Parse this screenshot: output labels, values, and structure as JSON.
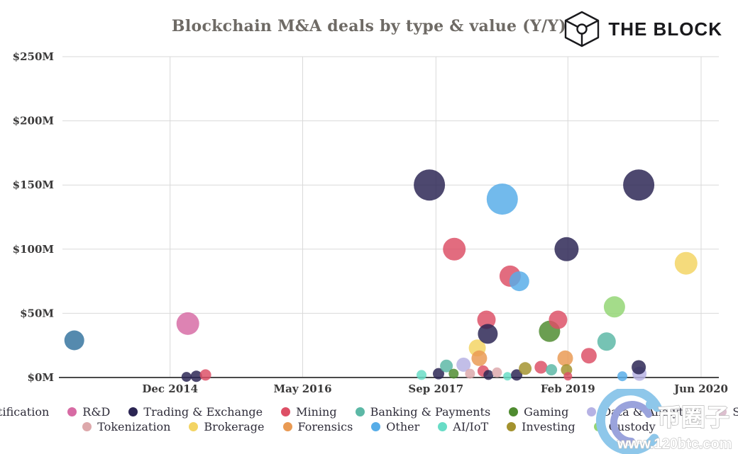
{
  "title": "Blockchain M&A deals by type & value (Y/Y)",
  "logo": {
    "text": "THE BLOCK"
  },
  "watermark": {
    "cjk": "币圈子",
    "url": "www.120btc.com"
  },
  "categories": [
    {
      "id": "identification",
      "label": "Identification",
      "color": "#35749f"
    },
    {
      "id": "rd",
      "label": "R&D",
      "color": "#d76ba4"
    },
    {
      "id": "trading",
      "label": "Trading & Exchange",
      "color": "#2b2553"
    },
    {
      "id": "mining",
      "label": "Mining",
      "color": "#dd5066"
    },
    {
      "id": "banking",
      "label": "Banking & Payments",
      "color": "#5cb8a6"
    },
    {
      "id": "gaming",
      "label": "Gaming",
      "color": "#4f8b30"
    },
    {
      "id": "data_analytics",
      "label": "Data & Analytics",
      "color": "#b6b2e4"
    },
    {
      "id": "security",
      "label": "Security",
      "color": "#ddbfcf",
      "obscured": true
    },
    {
      "id": "tokenization",
      "label": "Tokenization",
      "color": "#dda8ab"
    },
    {
      "id": "brokerage",
      "label": "Brokerage",
      "color": "#f3d463"
    },
    {
      "id": "forensics",
      "label": "Forensics",
      "color": "#e99a53"
    },
    {
      "id": "other",
      "label": "Other",
      "color": "#57ade8"
    },
    {
      "id": "aiiot",
      "label": "AI/IoT",
      "color": "#68dcc6"
    },
    {
      "id": "investing",
      "label": "Investing",
      "color": "#a3922e"
    },
    {
      "id": "custody",
      "label": "Custody",
      "color": "#93d573"
    }
  ],
  "legend": {
    "rows": [
      [
        "identification",
        "rd",
        "trading",
        "mining",
        "banking",
        "gaming",
        "data_analytics",
        "security"
      ],
      [
        "tokenization",
        "brokerage",
        "forensics",
        "other",
        "aiiot",
        "investing",
        "custody"
      ]
    ]
  },
  "chart_data": {
    "type": "scatter",
    "subtype": "bubble",
    "title": "Blockchain M&A deals by type & value (Y/Y)",
    "grid": true,
    "y_axis": {
      "range_musd": [
        0,
        250
      ],
      "ticks": [
        {
          "value": 0,
          "label": "$0M"
        },
        {
          "value": 50,
          "label": "$50M"
        },
        {
          "value": 100,
          "label": "$100M"
        },
        {
          "value": 150,
          "label": "$150M"
        },
        {
          "value": 200,
          "label": "$200M"
        },
        {
          "value": 250,
          "label": "$250M"
        }
      ]
    },
    "x_axis": {
      "ticks": [
        {
          "label": "Dec 2014",
          "pos_pct": 16.4
        },
        {
          "label": "May 2016",
          "pos_pct": 36.6
        },
        {
          "label": "Sep 2017",
          "pos_pct": 56.9
        },
        {
          "label": "Feb 2019",
          "pos_pct": 77.0
        },
        {
          "label": "Jun 2020",
          "pos_pct": 97.3
        }
      ]
    },
    "points": [
      {
        "category": "identification",
        "x_pct": 1.8,
        "value_musd": 29,
        "r": 14
      },
      {
        "category": "rd",
        "x_pct": 19.1,
        "value_musd": 42,
        "r": 16
      },
      {
        "category": "trading",
        "x_pct": 18.9,
        "value_musd": 0.5,
        "r": 7
      },
      {
        "category": "trading",
        "x_pct": 20.4,
        "value_musd": 1,
        "r": 8
      },
      {
        "category": "mining",
        "x_pct": 21.8,
        "value_musd": 2,
        "r": 8
      },
      {
        "category": "trading",
        "x_pct": 55.9,
        "value_musd": 150,
        "r": 22
      },
      {
        "category": "mining",
        "x_pct": 59.7,
        "value_musd": 100,
        "r": 16
      },
      {
        "category": "other",
        "x_pct": 67.0,
        "value_musd": 139,
        "r": 22
      },
      {
        "category": "mining",
        "x_pct": 68.2,
        "value_musd": 79,
        "r": 15
      },
      {
        "category": "other",
        "x_pct": 69.6,
        "value_musd": 75,
        "r": 14
      },
      {
        "category": "trading",
        "x_pct": 76.8,
        "value_musd": 100,
        "r": 17
      },
      {
        "category": "trading",
        "x_pct": 87.8,
        "value_musd": 150,
        "r": 22
      },
      {
        "category": "brokerage",
        "x_pct": 95.0,
        "value_musd": 89,
        "r": 16
      },
      {
        "category": "custody",
        "x_pct": 84.1,
        "value_musd": 55,
        "r": 15
      },
      {
        "category": "aiiot",
        "x_pct": 54.7,
        "value_musd": 2,
        "r": 7
      },
      {
        "category": "trading",
        "x_pct": 57.3,
        "value_musd": 3,
        "r": 8
      },
      {
        "category": "banking",
        "x_pct": 58.5,
        "value_musd": 9,
        "r": 9
      },
      {
        "category": "gaming",
        "x_pct": 59.6,
        "value_musd": 3,
        "r": 7
      },
      {
        "category": "data_analytics",
        "x_pct": 61.1,
        "value_musd": 10,
        "r": 10
      },
      {
        "category": "tokenization",
        "x_pct": 62.1,
        "value_musd": 3,
        "r": 7
      },
      {
        "category": "brokerage",
        "x_pct": 63.2,
        "value_musd": 23,
        "r": 12
      },
      {
        "category": "forensics",
        "x_pct": 63.5,
        "value_musd": 15,
        "r": 11
      },
      {
        "category": "mining",
        "x_pct": 64.1,
        "value_musd": 5,
        "r": 8
      },
      {
        "category": "trading",
        "x_pct": 64.9,
        "value_musd": 2,
        "r": 7
      },
      {
        "category": "tokenization",
        "x_pct": 66.2,
        "value_musd": 4,
        "r": 7
      },
      {
        "category": "mining",
        "x_pct": 64.6,
        "value_musd": 45,
        "r": 13
      },
      {
        "category": "trading",
        "x_pct": 64.8,
        "value_musd": 34,
        "r": 14
      },
      {
        "category": "aiiot",
        "x_pct": 67.8,
        "value_musd": 1,
        "r": 6
      },
      {
        "category": "trading",
        "x_pct": 69.2,
        "value_musd": 2,
        "r": 8
      },
      {
        "category": "investing",
        "x_pct": 70.5,
        "value_musd": 7,
        "r": 9
      },
      {
        "category": "mining",
        "x_pct": 72.9,
        "value_musd": 8,
        "r": 9
      },
      {
        "category": "banking",
        "x_pct": 74.5,
        "value_musd": 6,
        "r": 8
      },
      {
        "category": "gaming",
        "x_pct": 74.2,
        "value_musd": 36,
        "r": 15
      },
      {
        "category": "mining",
        "x_pct": 75.5,
        "value_musd": 45,
        "r": 13
      },
      {
        "category": "forensics",
        "x_pct": 76.6,
        "value_musd": 15,
        "r": 11
      },
      {
        "category": "investing",
        "x_pct": 76.8,
        "value_musd": 6,
        "r": 8
      },
      {
        "category": "mining",
        "x_pct": 77.0,
        "value_musd": 1,
        "r": 6
      },
      {
        "category": "mining",
        "x_pct": 80.2,
        "value_musd": 17,
        "r": 11
      },
      {
        "category": "banking",
        "x_pct": 82.9,
        "value_musd": 28,
        "r": 13
      },
      {
        "category": "other",
        "x_pct": 85.3,
        "value_musd": 1,
        "r": 7
      },
      {
        "category": "data_analytics",
        "x_pct": 87.9,
        "value_musd": 3,
        "r": 10
      },
      {
        "category": "trading",
        "x_pct": 87.8,
        "value_musd": 8,
        "r": 10
      }
    ]
  }
}
